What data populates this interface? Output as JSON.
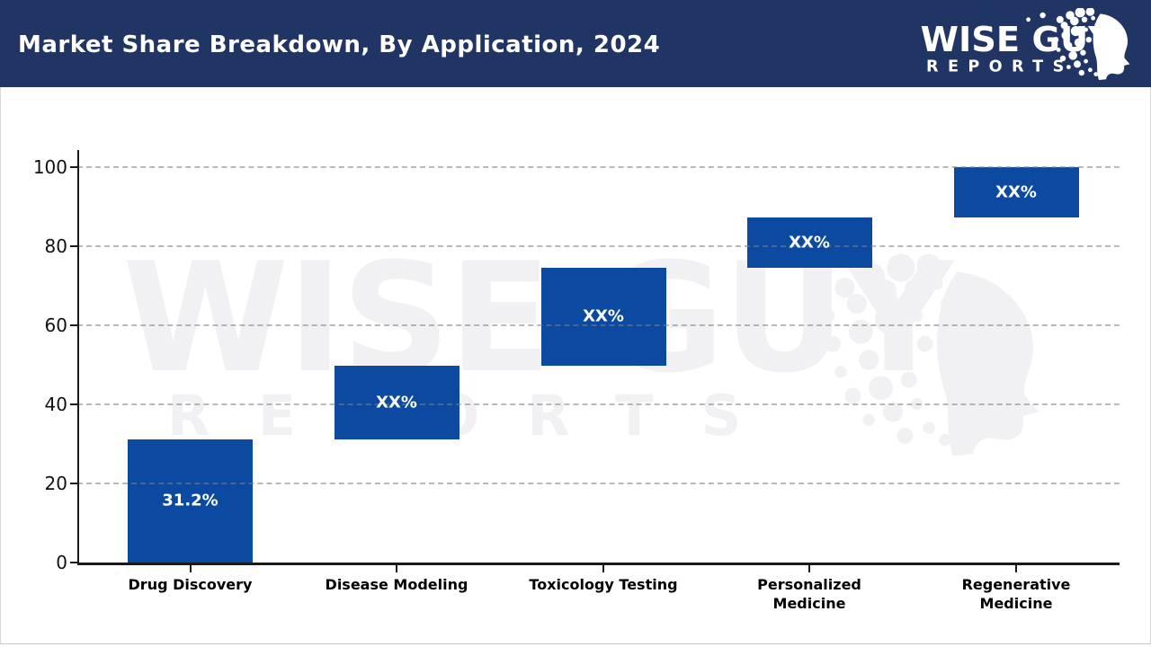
{
  "header": {
    "title": "Market Share Breakdown, By Application, 2024",
    "logo": {
      "line1": "WISE GUY",
      "line2": "REPORTS"
    }
  },
  "watermark": {
    "line1": "WISE GUY",
    "line2": "REPORTS"
  },
  "colors": {
    "header_bg": "#213564",
    "bar": "#0b4aa0",
    "bar_label": "#ffffff",
    "axis": "#1a1a1a",
    "grid": "rgba(128,128,128,0.55)",
    "watermark": "#f1f1f4"
  },
  "chart_data": {
    "type": "bar",
    "subtype": "waterfall",
    "title": "Market Share Breakdown, By Application, 2024",
    "categories": [
      "Drug Discovery",
      "Disease Modeling",
      "Toxicology Testing",
      "Personalized Medicine",
      "Regenerative Medicine"
    ],
    "series": [
      {
        "name": "Market share (%)",
        "segments": [
          {
            "category": "Drug Discovery",
            "start": 0,
            "end": 31.2,
            "label": "31.2%"
          },
          {
            "category": "Disease Modeling",
            "start": 31.2,
            "end": 49.8,
            "label": "XX%"
          },
          {
            "category": "Toxicology Testing",
            "start": 49.8,
            "end": 74.6,
            "label": "XX%"
          },
          {
            "category": "Personalized Medicine",
            "start": 74.6,
            "end": 87.2,
            "label": "XX%"
          },
          {
            "category": "Regenerative Medicine",
            "start": 87.2,
            "end": 100,
            "label": "XX%"
          }
        ]
      }
    ],
    "ylim": [
      0,
      100
    ],
    "yticks": [
      0,
      20,
      40,
      60,
      80,
      100
    ],
    "grid": {
      "horizontal": true,
      "style": "dashed"
    },
    "legend": null
  }
}
